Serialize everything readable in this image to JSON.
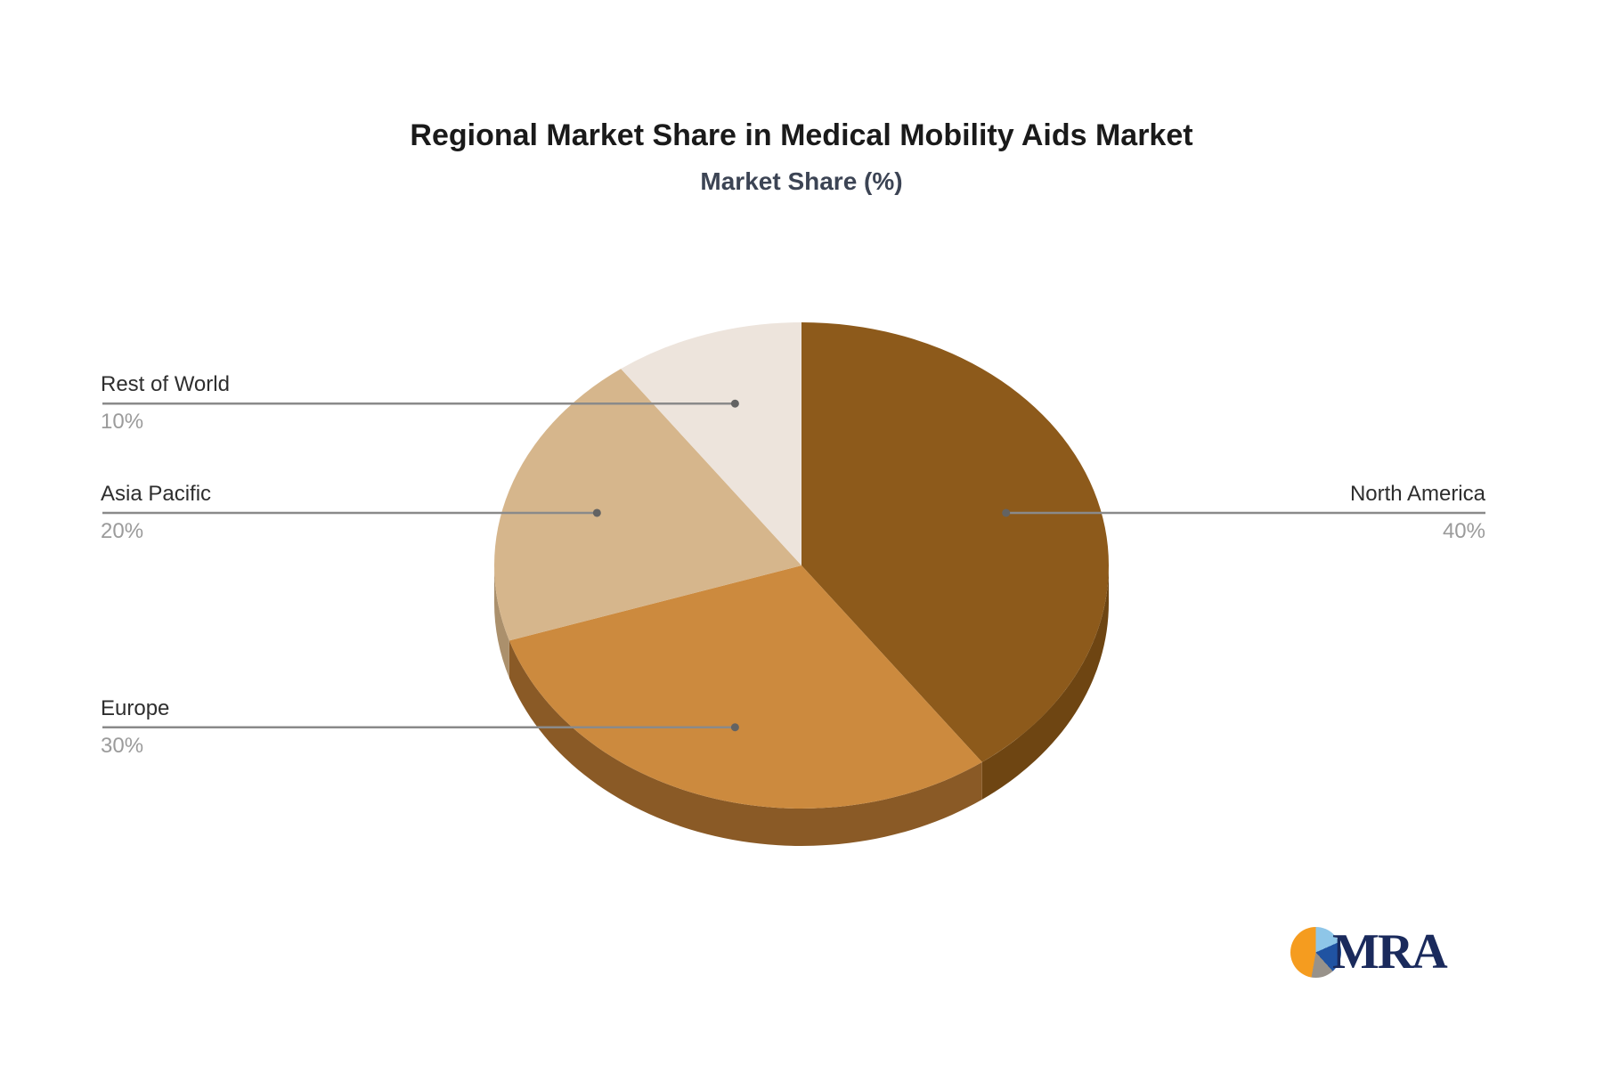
{
  "chart_data": {
    "type": "pie",
    "style": "3d",
    "title": "Regional Market Share in Medical Mobility Aids Market",
    "subtitle": "Market Share (%)",
    "unit": "%",
    "start_angle_deg": 0,
    "direction": "clockwise",
    "slices": [
      {
        "label": "North America",
        "value": 40,
        "percent_label": "40%",
        "color": "#8d5a1b",
        "side_color": "#6e4512",
        "label_side": "right"
      },
      {
        "label": "Europe",
        "value": 30,
        "percent_label": "30%",
        "color": "#cc8a3e",
        "side_color": "#8a5a26",
        "label_side": "left"
      },
      {
        "label": "Asia Pacific",
        "value": 20,
        "percent_label": "20%",
        "color": "#d6b68c",
        "side_color": "#ab906c",
        "label_side": "left"
      },
      {
        "label": "Rest of World",
        "value": 10,
        "percent_label": "10%",
        "color": "#ede4dc",
        "side_color": "#c4b6a8",
        "label_side": "left"
      }
    ],
    "title_color": "#1a1a1a",
    "subtitle_color": "#3c4454",
    "label_color": "#2e2e2e",
    "percent_color": "#9b9b9b",
    "connector_color": "#8a8a8a",
    "connector_dot_color": "#636363",
    "legend": "none",
    "background": "#ffffff"
  },
  "logo": {
    "text": "MRA",
    "text_color": "#1a2a5c",
    "icon": "pie-chart-icon",
    "icon_colors": {
      "orange": "#f59c1f",
      "light_blue": "#8ec6e8",
      "dark_blue": "#2053a2",
      "gray": "#98928a"
    }
  }
}
